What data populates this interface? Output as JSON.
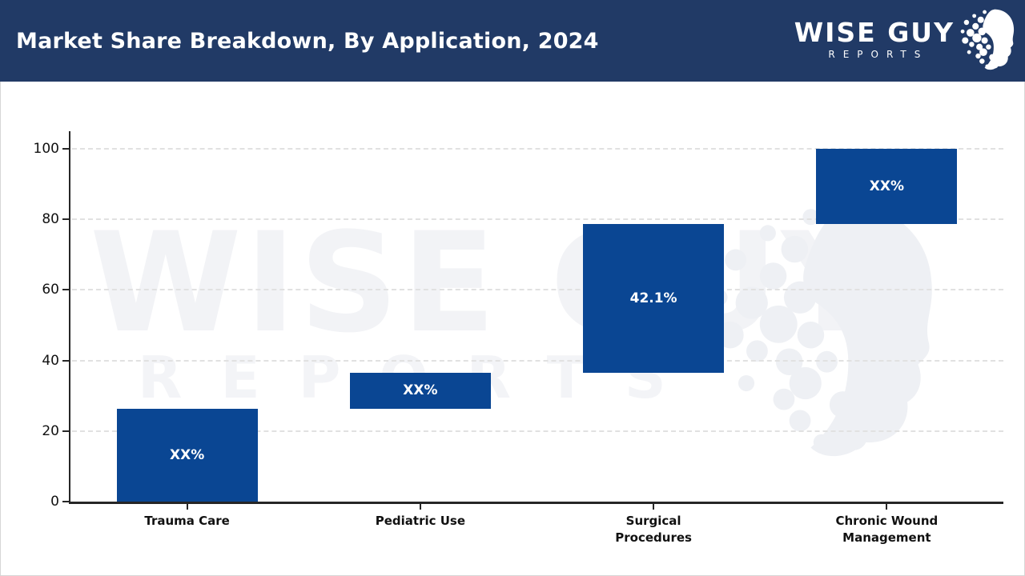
{
  "header": {
    "title": "Market Share Breakdown, By Application, 2024",
    "logo": {
      "line1": "WISE GUY",
      "line2": "REPORTS"
    },
    "bg_color": "#213a66"
  },
  "watermark": {
    "line1": "WISE GUY",
    "line2": "REPORTS"
  },
  "chart_data": {
    "type": "bar",
    "subtype": "waterfall",
    "title": "Market Share Breakdown, By Application, 2024",
    "categories": [
      "Trauma Care",
      "Pediatric Use",
      "Surgical Procedures",
      "Chronic Wound Management"
    ],
    "segments": [
      {
        "category": "Trauma Care",
        "start": 0,
        "end": 26.3,
        "value": 26.3,
        "label": "XX%"
      },
      {
        "category": "Pediatric Use",
        "start": 26.3,
        "end": 36.6,
        "value": 10.3,
        "label": "XX%"
      },
      {
        "category": "Surgical Procedures",
        "start": 36.6,
        "end": 78.7,
        "value": 42.1,
        "label": "42.1%"
      },
      {
        "category": "Chronic Wound Management",
        "start": 78.7,
        "end": 100,
        "value": 21.3,
        "label": "XX%"
      }
    ],
    "xlabel": "",
    "ylabel": "",
    "ylim": [
      0,
      100
    ],
    "yticks": [
      0,
      20,
      40,
      60,
      80,
      100
    ],
    "grid": "horizontal-dashed",
    "legend": "none",
    "bar_color": "#0a4693",
    "bar_label_color": "#ffffff",
    "axis_color": "#262626",
    "grid_color": "#e1e1e1"
  }
}
